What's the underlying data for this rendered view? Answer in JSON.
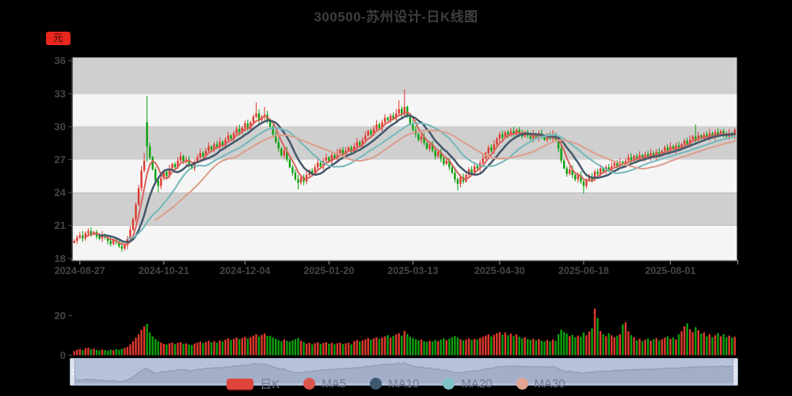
{
  "title": "300500-苏州设计-日K线图",
  "unit_badge": "元",
  "colors": {
    "background": "#000000",
    "title_text": "#3e3e3e",
    "axis_text": "#454545",
    "band_gray": "#cfcfcf",
    "band_white": "#f5f5f5",
    "up": "#e0392e",
    "down": "#0ea00e",
    "badge_bg": "#e8271f",
    "axis_line": "#3a3a3a",
    "x_axis_line": "#8a8a8a",
    "nav_bg": "#b6c2da",
    "nav_area": "#a3afc9",
    "nav_line": "#8e9ab6",
    "legend_text": "#6f7b90"
  },
  "legend": {
    "items": [
      {
        "label": "日K",
        "icon": "rect",
        "color": "#e0453c"
      },
      {
        "label": "MA5",
        "icon": "circle",
        "color": "#d9544d"
      },
      {
        "label": "MA10",
        "icon": "circle",
        "color": "#3d5870"
      },
      {
        "label": "MA20",
        "icon": "circle",
        "color": "#7fc2c3"
      },
      {
        "label": "MA30",
        "icon": "circle",
        "color": "#e2a493"
      }
    ]
  },
  "chart_data": {
    "type": "candlestick+volume",
    "title": "300500-苏州设计-日K线图",
    "ylabel": "元",
    "y_ticks": [
      18,
      21,
      24,
      27,
      30,
      33,
      36
    ],
    "ylim": [
      17.8,
      36.3
    ],
    "volume_ticks": [
      0,
      20
    ],
    "grid": "alternating-horizontal-bands",
    "legend_position": "bottom",
    "x_tick_labels": [
      {
        "i": 2,
        "label": "2024-08-27"
      },
      {
        "i": 32,
        "label": "2024-10-21"
      },
      {
        "i": 61,
        "label": "2024-12-04"
      },
      {
        "i": 91,
        "label": "2025-01-20"
      },
      {
        "i": 121,
        "label": "2025-03-13"
      },
      {
        "i": 152,
        "label": "2025-04-30"
      },
      {
        "i": 182,
        "label": "2025-06-18"
      },
      {
        "i": 213,
        "label": "2025-08-01"
      }
    ],
    "ma_series": [
      {
        "name": "MA5",
        "n": 5,
        "color": "#d9625a",
        "width": 2
      },
      {
        "name": "MA10",
        "n": 10,
        "color": "#44586c",
        "width": 2.5
      },
      {
        "name": "MA20",
        "n": 20,
        "color": "#74b8ba",
        "width": 2
      },
      {
        "name": "MA30",
        "n": 30,
        "color": "#dc9e8c",
        "width": 2
      }
    ],
    "closes": [
      19.6,
      19.9,
      20.1,
      19.8,
      20.3,
      20.5,
      20.2,
      20.4,
      20.0,
      19.8,
      20.1,
      19.9,
      19.6,
      19.3,
      19.7,
      19.5,
      19.1,
      18.9,
      19.2,
      19.8,
      20.6,
      21.6,
      22.9,
      24.4,
      26.0,
      26.9,
      28.2,
      27.2,
      26.1,
      25.1,
      24.6,
      25.3,
      25.9,
      25.5,
      26.2,
      26.6,
      26.3,
      26.9,
      27.3,
      26.8,
      27.0,
      26.5,
      26.2,
      26.8,
      27.2,
      27.6,
      27.3,
      27.8,
      28.2,
      27.9,
      28.4,
      28.1,
      28.6,
      28.3,
      28.8,
      29.2,
      28.9,
      29.4,
      29.8,
      29.5,
      29.9,
      30.3,
      29.8,
      30.4,
      30.9,
      31.2,
      30.6,
      30.9,
      31.1,
      30.5,
      30.0,
      29.3,
      28.6,
      28.0,
      27.4,
      27.8,
      27.0,
      26.3,
      25.8,
      25.2,
      24.9,
      25.4,
      25.0,
      25.6,
      26.0,
      25.7,
      26.3,
      26.7,
      26.4,
      26.9,
      27.2,
      26.8,
      27.4,
      27.1,
      27.6,
      27.9,
      27.5,
      27.8,
      28.1,
      27.7,
      28.2,
      28.6,
      28.3,
      28.8,
      29.2,
      29.6,
      29.3,
      29.8,
      30.2,
      29.9,
      30.4,
      30.8,
      30.6,
      31.0,
      30.7,
      31.2,
      31.6,
      31.1,
      31.8,
      30.9,
      30.3,
      29.7,
      29.3,
      28.8,
      29.1,
      28.5,
      28.0,
      28.4,
      27.8,
      27.3,
      27.7,
      27.1,
      26.6,
      26.9,
      26.3,
      25.8,
      25.2,
      24.8,
      25.4,
      25.0,
      25.6,
      26.1,
      25.8,
      26.4,
      26.2,
      26.7,
      27.1,
      27.6,
      28.1,
      27.8,
      28.4,
      28.9,
      29.3,
      29.0,
      29.5,
      29.2,
      29.6,
      29.3,
      29.7,
      29.4,
      29.1,
      29.5,
      29.2,
      28.9,
      29.3,
      29.0,
      29.4,
      29.1,
      28.8,
      29.2,
      28.9,
      29.3,
      28.8,
      28.0,
      26.9,
      26.2,
      25.7,
      26.1,
      25.6,
      25.2,
      25.6,
      25.0,
      24.6,
      25.1,
      25.4,
      25.2,
      25.9,
      25.7,
      26.2,
      25.9,
      26.3,
      26.0,
      26.4,
      26.7,
      26.4,
      26.8,
      26.5,
      26.9,
      27.2,
      26.9,
      27.3,
      27.0,
      27.4,
      27.1,
      27.5,
      27.2,
      27.6,
      27.3,
      27.7,
      27.4,
      27.8,
      28.1,
      27.8,
      28.2,
      27.9,
      28.3,
      28.0,
      28.4,
      28.7,
      28.4,
      28.8,
      29.1,
      28.8,
      29.2,
      28.9,
      29.3,
      29.0,
      29.4,
      29.1,
      29.5,
      29.2,
      29.6,
      29.3,
      29.1,
      29.4,
      29.2,
      29.7
    ],
    "volumes": [
      2.1,
      2.8,
      3.2,
      2.5,
      3.5,
      3.8,
      3.0,
      3.3,
      2.7,
      2.4,
      2.9,
      2.6,
      2.3,
      2.8,
      2.5,
      3.0,
      2.7,
      3.2,
      3.6,
      4.2,
      5.5,
      7.0,
      8.8,
      10.5,
      12.8,
      14.5,
      15.8,
      11.5,
      9.5,
      8.2,
      7.0,
      6.4,
      5.8,
      5.4,
      6.0,
      6.4,
      5.6,
      6.2,
      6.6,
      5.8,
      6.0,
      5.4,
      5.1,
      5.9,
      6.4,
      6.9,
      6.1,
      6.7,
      7.3,
      6.5,
      7.1,
      6.3,
      7.5,
      6.9,
      7.9,
      8.5,
      7.7,
      8.3,
      8.9,
      8.1,
      8.7,
      9.3,
      8.5,
      9.1,
      9.9,
      10.6,
      9.4,
      10.2,
      11.0,
      9.8,
      9.7,
      8.9,
      8.3,
      7.7,
      7.1,
      7.9,
      7.3,
      6.9,
      7.5,
      8.1,
      8.7,
      7.3,
      6.7,
      5.9,
      6.3,
      5.5,
      6.1,
      6.5,
      5.7,
      6.2,
      6.6,
      5.8,
      6.3,
      5.6,
      6.1,
      6.4,
      5.7,
      6.0,
      6.3,
      5.5,
      7.1,
      7.7,
      6.9,
      7.5,
      8.1,
      8.7,
      7.9,
      8.5,
      9.1,
      8.3,
      8.9,
      9.5,
      10.1,
      8.9,
      9.7,
      10.5,
      11.1,
      9.9,
      12.3,
      10.7,
      9.3,
      8.7,
      8.1,
      7.5,
      7.9,
      7.1,
      6.7,
      7.3,
      6.9,
      7.7,
      7.1,
      7.9,
      8.5,
      7.7,
      8.3,
      9.1,
      9.7,
      8.9,
      8.1,
      7.5,
      7.9,
      8.5,
      7.7,
      8.3,
      7.9,
      8.7,
      9.3,
      9.9,
      10.5,
      9.5,
      10.3,
      11.1,
      11.7,
      10.3,
      11.5,
      10.1,
      10.9,
      9.7,
      10.5,
      9.3,
      8.5,
      9.1,
      8.1,
      7.7,
      8.3,
      7.5,
      8.1,
      7.3,
      6.9,
      7.7,
      7.1,
      7.9,
      7.3,
      10.6,
      12.9,
      11.7,
      10.9,
      9.7,
      10.3,
      9.1,
      9.9,
      9.3,
      11.5,
      10.1,
      12.0,
      13.6,
      23.5,
      18.8,
      12.2,
      10.6,
      9.6,
      11.1,
      10.1,
      9.1,
      9.9,
      10.6,
      15.6,
      16.6,
      12.1,
      10.1,
      9.1,
      7.6,
      8.3,
      7.1,
      7.9,
      8.5,
      7.3,
      8.0,
      8.6,
      7.5,
      8.1,
      8.9,
      9.5,
      8.3,
      8.9,
      7.9,
      10.6,
      12.1,
      14.6,
      16.1,
      13.1,
      11.6,
      14.1,
      12.6,
      10.9,
      11.6,
      9.6,
      10.6,
      9.1,
      10.1,
      11.1,
      9.6,
      10.6,
      9.1,
      9.9,
      8.9,
      9.3
    ],
    "overrides": {
      "0": {
        "o": 19.4
      },
      "25": {
        "h": 27.6
      },
      "26": {
        "o": 30.4,
        "h": 32.8,
        "l": 26.8
      },
      "30": {
        "l": 24.0
      },
      "65": {
        "h": 32.2
      },
      "68": {
        "h": 31.8
      },
      "80": {
        "l": 24.3
      },
      "116": {
        "h": 32.4
      },
      "118": {
        "h": 33.4
      },
      "137": {
        "l": 24.2
      },
      "182": {
        "l": 23.9
      },
      "222": {
        "h": 30.2
      },
      "236": {
        "h": 29.9
      }
    }
  }
}
